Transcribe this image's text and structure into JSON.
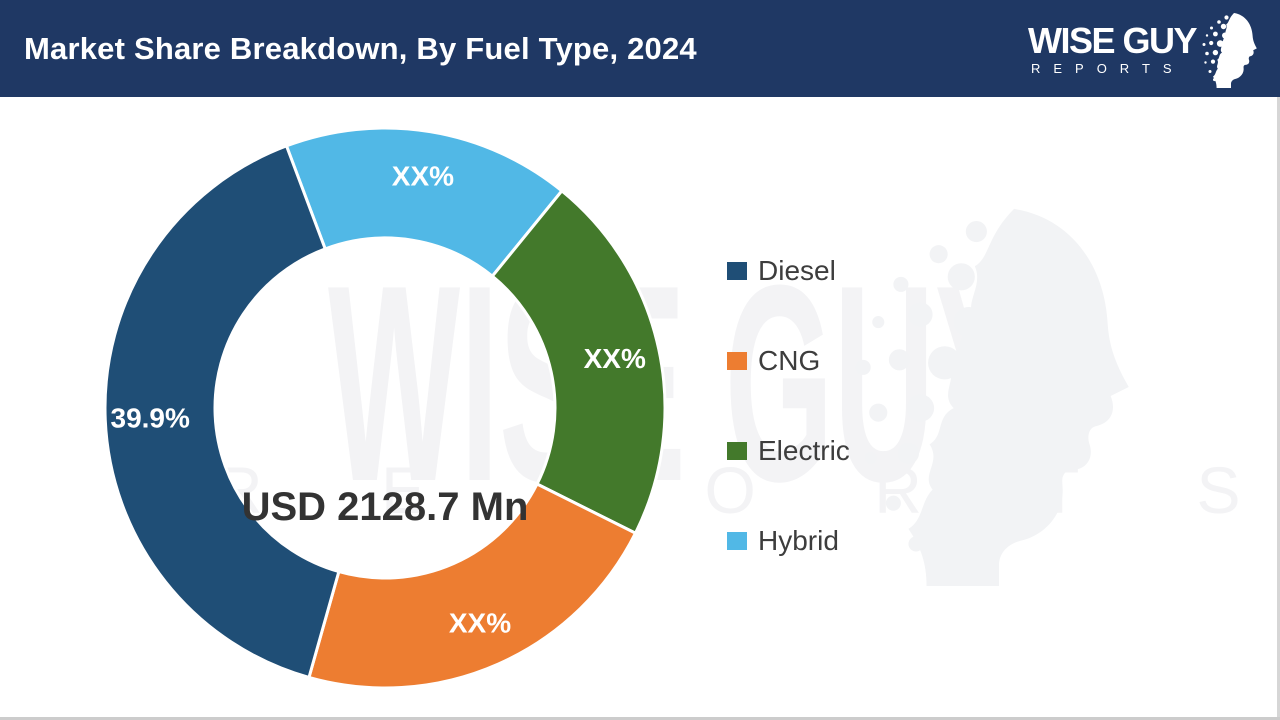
{
  "header": {
    "logo": {
      "brand_line1": "WISE GUY",
      "brand_line2": "REPORTS"
    }
  },
  "watermark": {
    "line1": "WISE GUY",
    "line2": "R E P O R T S"
  },
  "colors": {
    "header_bg": "#1F3864",
    "diesel": "#1F4E76",
    "cng": "#ED7D31",
    "electric": "#43792B",
    "hybrid": "#51B8E6",
    "center_text": "#333333"
  },
  "chart_data": {
    "type": "pie",
    "subtype": "donut",
    "title": "Market Share Breakdown, By Fuel Type, 2024",
    "center_label": "USD 2128.7 Mn",
    "legend_position": "right",
    "start_angle_deg": -20.6,
    "segments": [
      {
        "id": "hybrid",
        "name": "Hybrid",
        "value": 16.6,
        "label": "XX%",
        "color": "#51B8E6"
      },
      {
        "id": "electric",
        "name": "Electric",
        "value": 21.5,
        "label": "XX%",
        "color": "#43792B"
      },
      {
        "id": "cng",
        "name": "CNG",
        "value": 22.0,
        "label": "XX%",
        "color": "#ED7D31"
      },
      {
        "id": "diesel",
        "name": "Diesel",
        "value": 39.9,
        "label": "39.9%",
        "color": "#1F4E76"
      }
    ],
    "legend": [
      {
        "label": "Diesel",
        "color": "#1F4E76"
      },
      {
        "label": "CNG",
        "color": "#ED7D31"
      },
      {
        "label": "Electric",
        "color": "#43792B"
      },
      {
        "label": "Hybrid",
        "color": "#51B8E6"
      }
    ]
  }
}
